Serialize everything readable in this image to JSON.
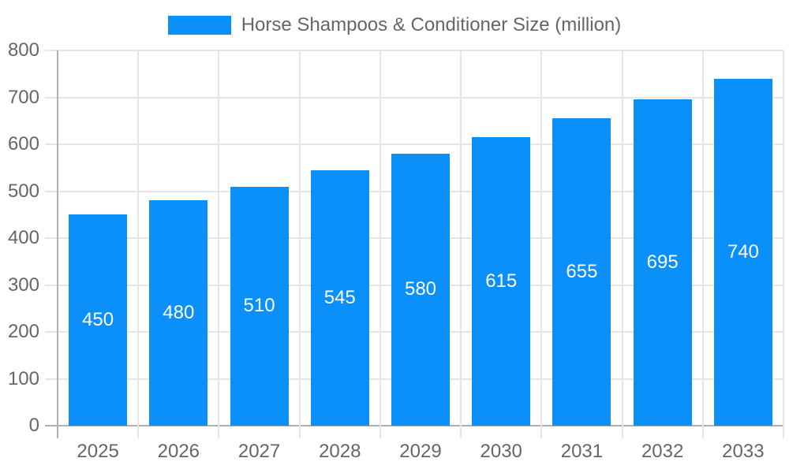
{
  "chart_data": {
    "type": "bar",
    "title": "Horse Shampoos & Conditioner Size (million)",
    "categories": [
      "2025",
      "2026",
      "2027",
      "2028",
      "2029",
      "2030",
      "2031",
      "2032",
      "2033"
    ],
    "values": [
      450,
      480,
      510,
      545,
      580,
      615,
      655,
      695,
      740
    ],
    "xlabel": "",
    "ylabel": "",
    "ylim": [
      0,
      800
    ],
    "ytick_step": 100,
    "grid": true,
    "legend_position": "top",
    "colors": {
      "bar": "#0b90f9",
      "value_label": "#ffffff",
      "axis_text": "#666666",
      "grid_line": "#e6e6e6",
      "axis_line": "#b0b0b0"
    }
  }
}
